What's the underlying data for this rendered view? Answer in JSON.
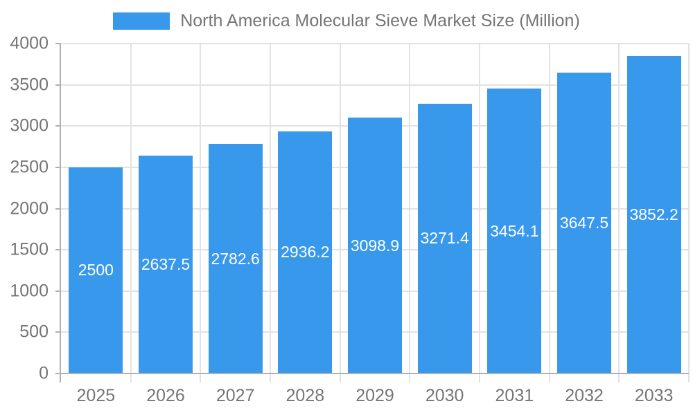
{
  "legend": {
    "swatch_color": "#3899ec"
  },
  "colors": {
    "bar": "#3899ec",
    "grid": "#e2e2e2",
    "axis_line": "#b0b0b0",
    "tick": "#b0b0b0",
    "boundary_tick": "#d9d9d9",
    "axis_label": "#757575",
    "value_label": "#ffffff",
    "background": "#ffffff"
  },
  "chart_data": {
    "type": "bar",
    "title": "North America Molecular Sieve Market Size (Million)",
    "categories": [
      "2025",
      "2026",
      "2027",
      "2028",
      "2029",
      "2030",
      "2031",
      "2032",
      "2033"
    ],
    "values": [
      2500,
      2637.5,
      2782.6,
      2936.2,
      3098.9,
      3271.4,
      3454.1,
      3647.5,
      3852.2
    ],
    "xlabel": "",
    "ylabel": "",
    "ylim": [
      0,
      4000
    ],
    "y_ticks": [
      0,
      500,
      1000,
      1500,
      2000,
      2500,
      3000,
      3500,
      4000
    ],
    "grid": true,
    "legend_position": "top",
    "value_labels": "inside-center-white"
  }
}
